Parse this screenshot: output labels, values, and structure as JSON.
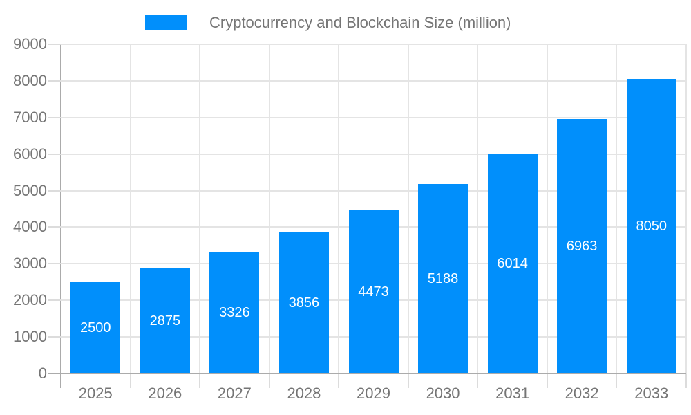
{
  "chart_data": {
    "type": "bar",
    "title": "Cryptocurrency and Blockchain Size (million)",
    "legend_position": "top",
    "legend_marker": "rectangle",
    "categories": [
      "2025",
      "2026",
      "2027",
      "2028",
      "2029",
      "2030",
      "2031",
      "2032",
      "2033"
    ],
    "values": [
      2500,
      2875,
      3326,
      3856,
      4473,
      5188,
      6014,
      6963,
      8050
    ],
    "value_labels_inside_bars": true,
    "xlabel": "",
    "ylabel": "",
    "ylim": [
      0,
      9000
    ],
    "yticks": [
      0,
      1000,
      2000,
      3000,
      4000,
      5000,
      6000,
      7000,
      8000,
      9000
    ],
    "grid": true,
    "colors": {
      "bar": "#018FFB",
      "axis_line": "#ABABAB",
      "gridline": "#E4E4E4",
      "tick": "#DCDCDC",
      "label_text": "#757575",
      "value_label": "#FFFFFF",
      "background": "#FFFFFF"
    }
  }
}
